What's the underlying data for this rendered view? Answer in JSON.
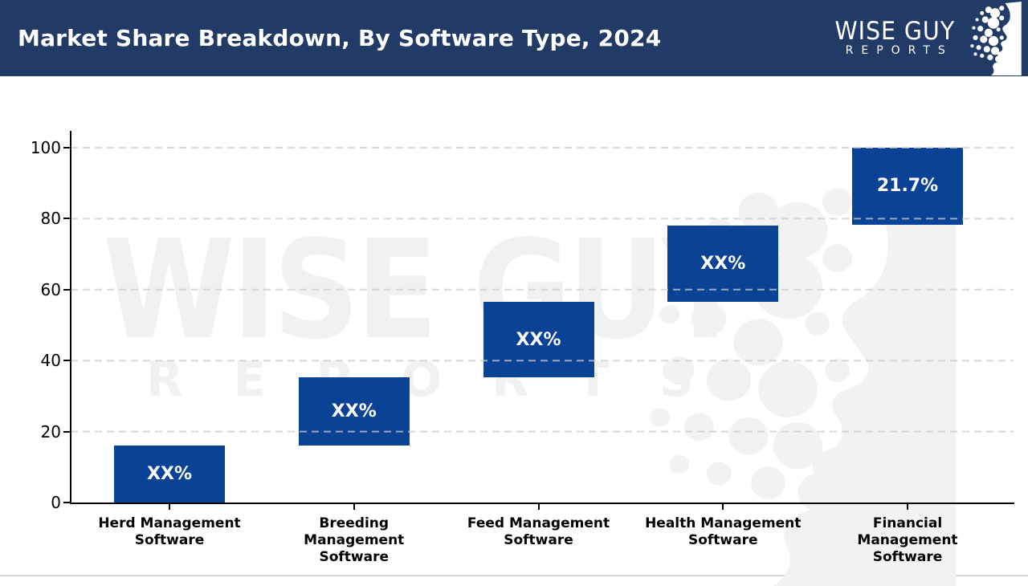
{
  "header": {
    "title": "Market Share Breakdown, By Software Type, 2024",
    "logo_line1": "WISE GUY",
    "logo_line2": "REPORTS"
  },
  "watermark": {
    "line1": "WISE GUY",
    "line2": "REPORTS"
  },
  "colors": {
    "header_bg": "#213a66",
    "bar": "#0a4296",
    "grid": "#cccccc",
    "axis": "#000000",
    "title_text": "#ffffff",
    "bar_label_text": "#ffffff",
    "watermark": "#f1f1f1",
    "watermark_dots": "#f2f2f2"
  },
  "chart_data": {
    "type": "bar",
    "subtype": "waterfall-style floating percentage bars",
    "title": "Market Share Breakdown, By Software Type, 2024",
    "xlabel": "",
    "ylabel": "",
    "ylim": [
      0,
      100
    ],
    "yticks": [
      0,
      20,
      40,
      60,
      80,
      100
    ],
    "grid": "horizontal dashed",
    "legend": "none",
    "bars": [
      {
        "category_lines": [
          "Herd Management",
          "Software"
        ],
        "start": 0,
        "end": 16,
        "value_label": "XX%"
      },
      {
        "category_lines": [
          "Breeding",
          "Management",
          "Software"
        ],
        "start": 16,
        "end": 35.2,
        "value_label": "XX%"
      },
      {
        "category_lines": [
          "Feed Management",
          "Software"
        ],
        "start": 35.2,
        "end": 56.5,
        "value_label": "XX%"
      },
      {
        "category_lines": [
          "Health Management",
          "Software"
        ],
        "start": 56.5,
        "end": 78,
        "value_label": "XX%"
      },
      {
        "category_lines": [
          "Financial",
          "Management",
          "Software"
        ],
        "start": 78.3,
        "end": 100,
        "value_label": "21.7%"
      }
    ]
  }
}
